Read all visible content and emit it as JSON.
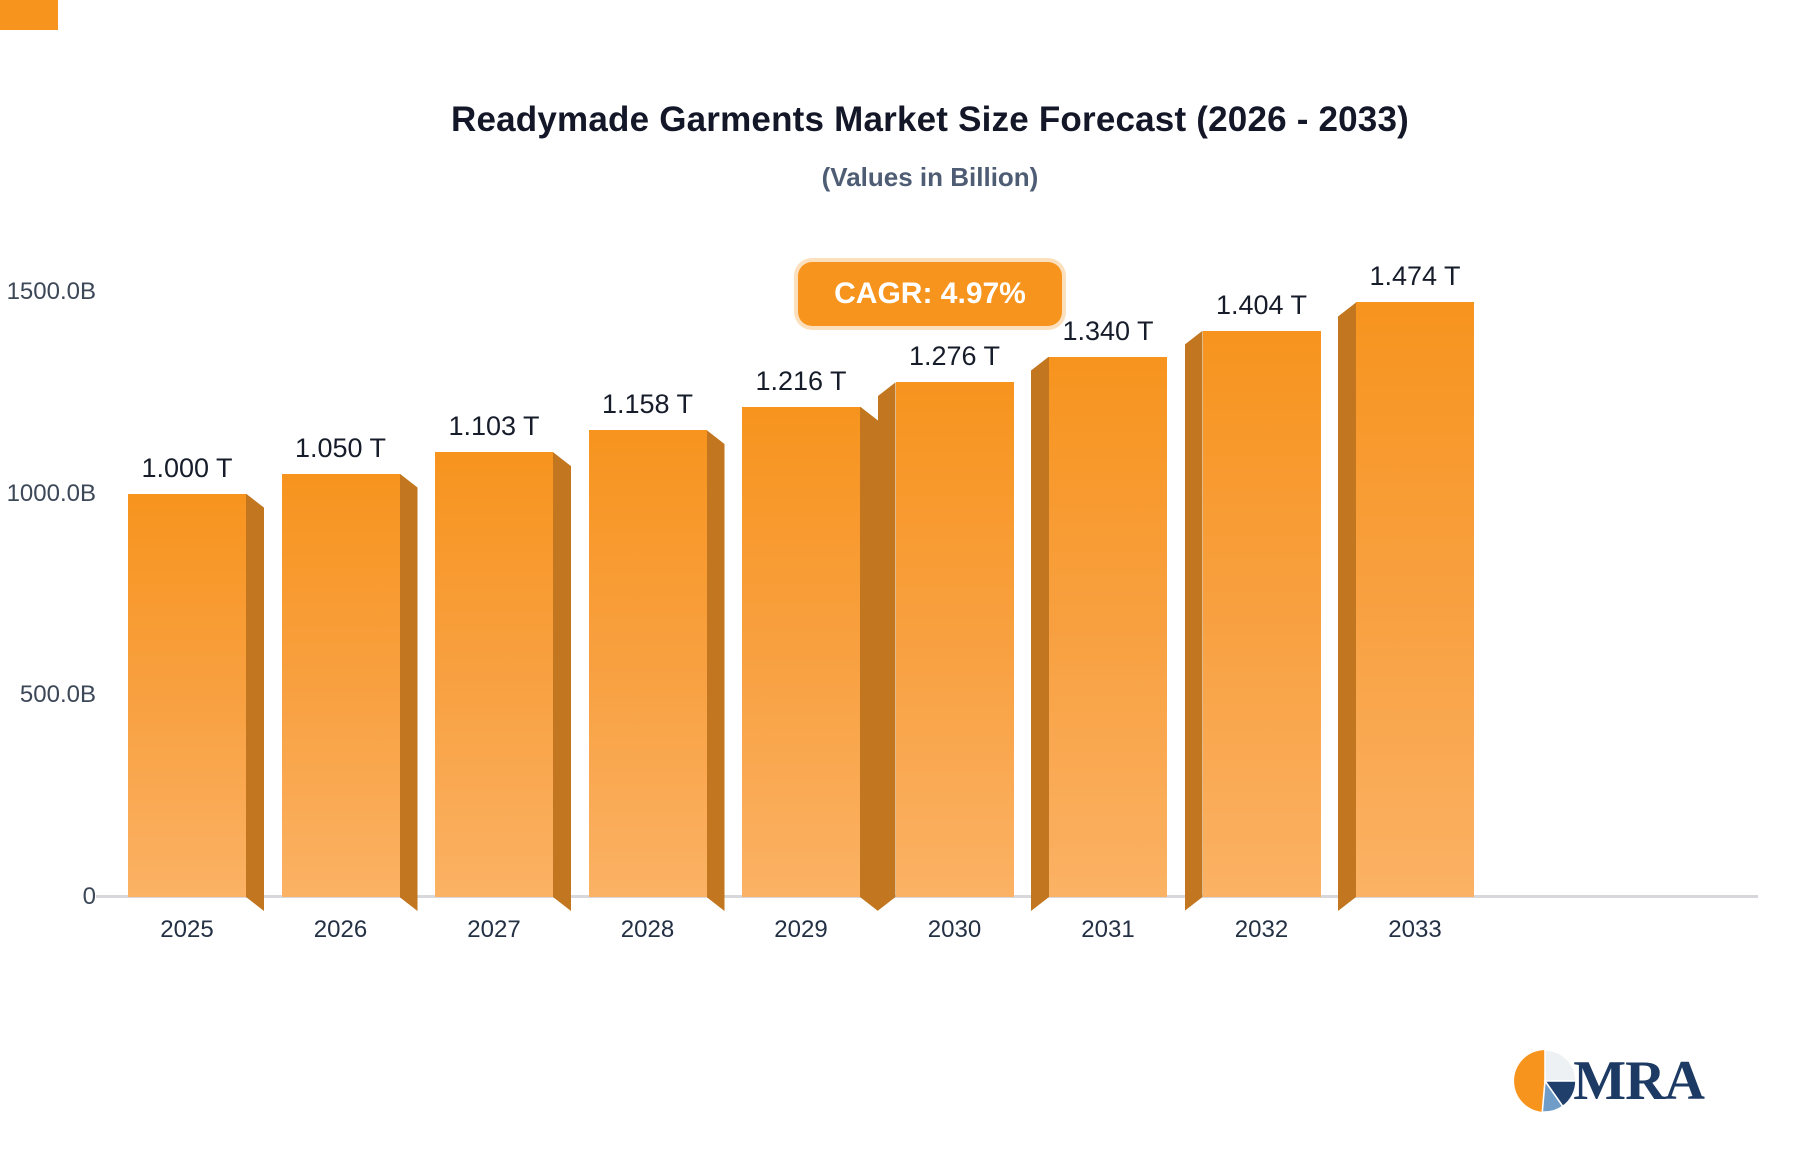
{
  "page": {
    "title": "Readymade Garments Market Size Forecast (2026 - 2033)",
    "subtitle": "(Values in Billion)",
    "cagr_label": "CAGR: 4.97%"
  },
  "chart_data": {
    "type": "bar",
    "title": "Readymade Garments Market Size Forecast (2026 - 2033)",
    "subtitle": "(Values in Billion)",
    "unit": "Billion USD",
    "categories": [
      "2025",
      "2026",
      "2027",
      "2028",
      "2029",
      "2030",
      "2031",
      "2032",
      "2033"
    ],
    "values": [
      1000,
      1050,
      1103,
      1158,
      1216,
      1276,
      1340,
      1404,
      1474
    ],
    "value_labels": [
      "1.000 T",
      "1.050 T",
      "1.103 T",
      "1.158 T",
      "1.216 T",
      "1.276 T",
      "1.340 T",
      "1.404 T",
      "1.474 T"
    ],
    "ylim": [
      0,
      1500
    ],
    "y_ticks": [
      {
        "label": "1500.0B",
        "value": 1500
      },
      {
        "label": "1000.0B",
        "value": 1000
      },
      {
        "label": "500.0B",
        "value": 500
      },
      {
        "label": "0",
        "value": 0
      }
    ],
    "annotation": "CAGR: 4.97%",
    "grid": false,
    "legend": false,
    "bar_style": "3d-orange-gradient"
  },
  "colors": {
    "bar_top": "#f7941e",
    "bar_mid": "#f8a040",
    "bar_bottom": "#fbb264",
    "bar_side": "#c1761f",
    "badge_bg": "#f6941d",
    "badge_text": "#ffffff",
    "accent_corner": "#f7941d",
    "axis_line": "#d8d8dc",
    "title_text": "#131728",
    "subtitle_text": "#4e5c74",
    "axis_text": "#3c4758",
    "logo_orange": "#f7941d",
    "logo_navy": "#20406b",
    "logo_steel": "#6f9dc8",
    "logo_light": "#eef1f4"
  },
  "logo": {
    "text": "MRA"
  }
}
